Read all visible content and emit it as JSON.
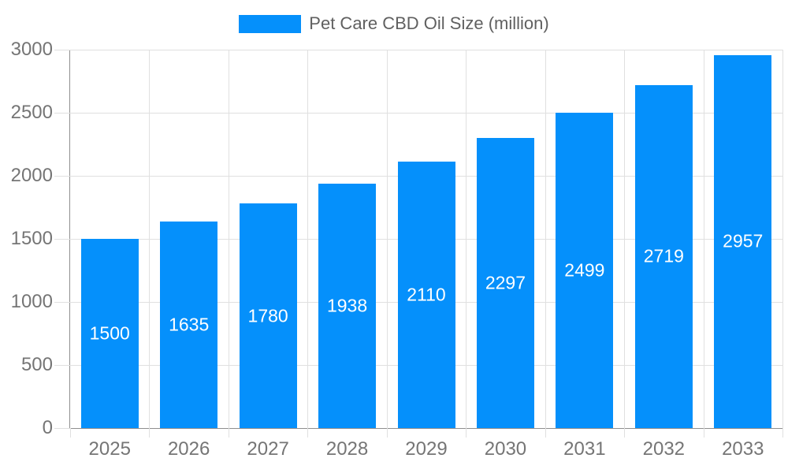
{
  "chart_data": {
    "type": "bar",
    "title": "Pet Care CBD Oil Size (million)",
    "series": [
      {
        "name": "Pet Care CBD Oil Size (million)",
        "values": [
          1500,
          1635,
          1780,
          1938,
          2110,
          2297,
          2499,
          2719,
          2957
        ]
      }
    ],
    "categories": [
      "2025",
      "2026",
      "2027",
      "2028",
      "2029",
      "2030",
      "2031",
      "2032",
      "2033"
    ],
    "xlabel": "",
    "ylabel": "",
    "ylim": [
      0,
      3000
    ],
    "yticks": [
      0,
      500,
      1000,
      1500,
      2000,
      2500,
      3000
    ],
    "grid": true,
    "legend_position": "top-center",
    "value_labels": "inside-center",
    "colors": {
      "bar": "#0590FB",
      "value_text": "#ffffff",
      "axis_text": "#757575",
      "legend_text": "#606060",
      "gridline": "#e0e0e0",
      "axis_line": "#8f8f8f",
      "background": "#ffffff"
    }
  }
}
